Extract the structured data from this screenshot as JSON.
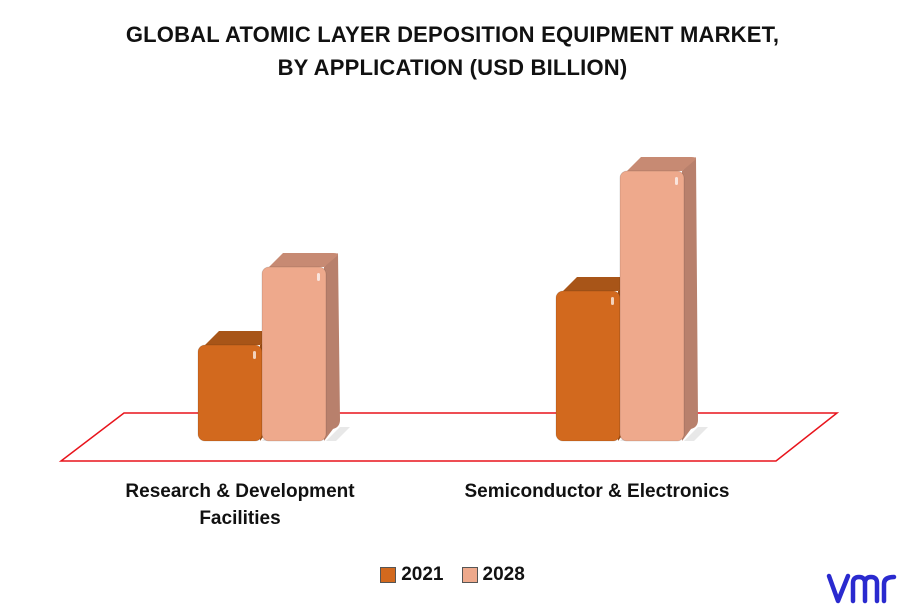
{
  "chart_data": {
    "type": "bar",
    "title": [
      "GLOBAL ATOMIC LAYER DEPOSITION EQUIPMENT MARKET,",
      "BY APPLICATION (USD BILLION)"
    ],
    "categories": [
      [
        "Research & Development",
        "Facilities"
      ],
      [
        "Semiconductor & Electronics"
      ]
    ],
    "series": [
      {
        "name": "2021",
        "color": "#d2691e",
        "values": [
          1.6,
          2.5
        ]
      },
      {
        "name": "2028",
        "color": "#eea98c",
        "values": [
          2.9,
          4.5
        ]
      }
    ],
    "ylim": [
      0,
      5
    ],
    "grid": false,
    "legend_position": "bottom",
    "style": "3d"
  },
  "logo": {
    "icon": "vmr-logo-icon",
    "color": "#2a2acf"
  }
}
